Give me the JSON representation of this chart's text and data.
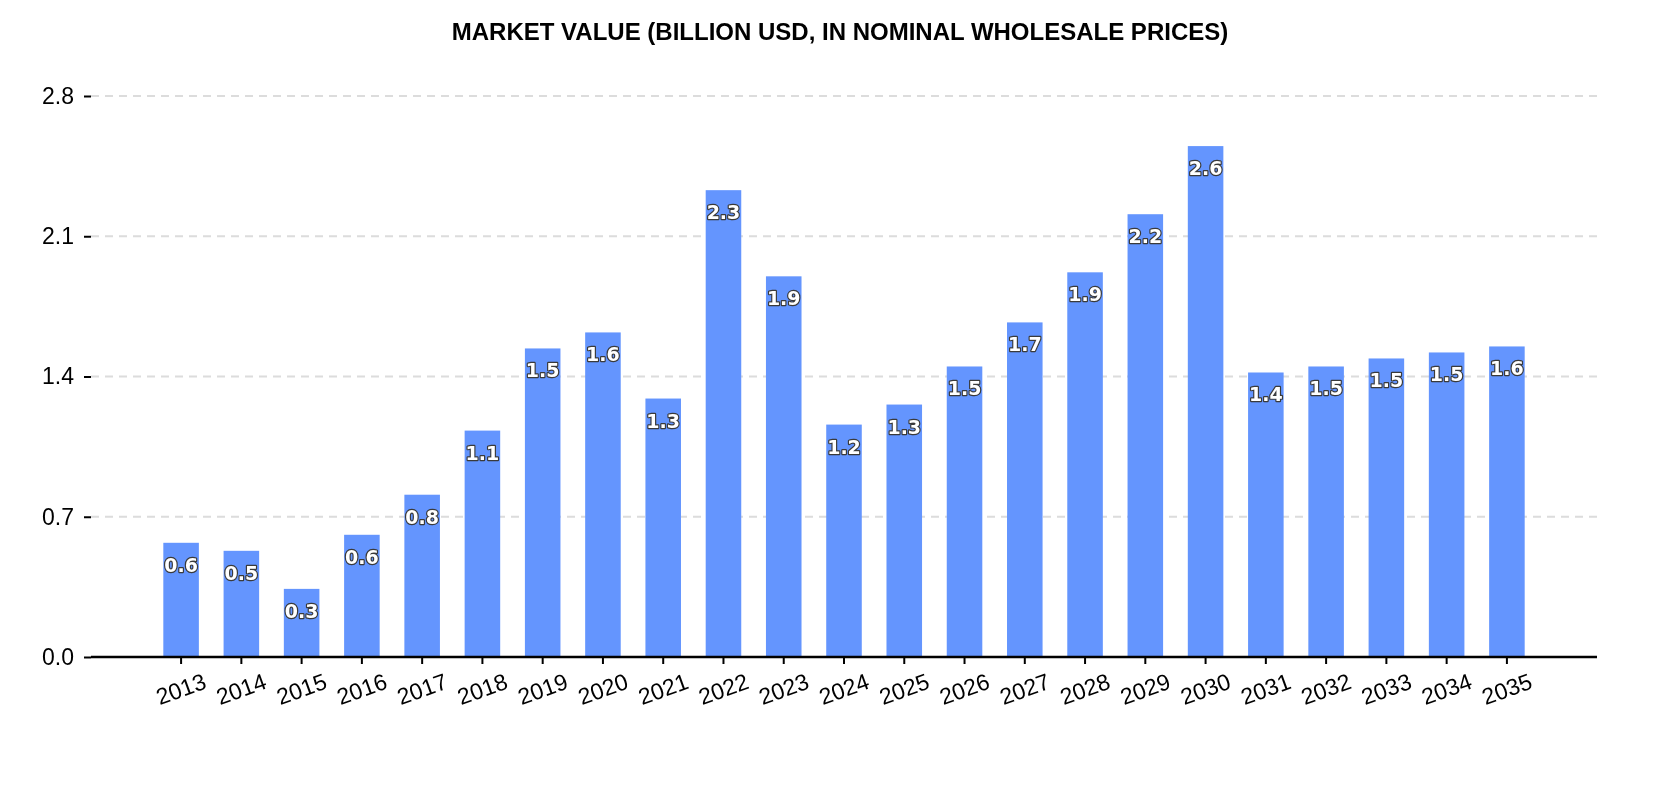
{
  "chart_data": {
    "type": "bar",
    "title": "MARKET VALUE (BILLION USD, IN NOMINAL WHOLESALE PRICES)",
    "categories": [
      "2013",
      "2014",
      "2015",
      "2016",
      "2017",
      "2018",
      "2019",
      "2020",
      "2021",
      "2022",
      "2023",
      "2024",
      "2025",
      "2026",
      "2027",
      "2028",
      "2029",
      "2030",
      "2031",
      "2032",
      "2033",
      "2034",
      "2035"
    ],
    "values": [
      0.57,
      0.53,
      0.34,
      0.61,
      0.81,
      1.13,
      1.54,
      1.62,
      1.29,
      2.33,
      1.9,
      1.16,
      1.26,
      1.45,
      1.67,
      1.92,
      2.21,
      2.55,
      1.42,
      1.45,
      1.49,
      1.52,
      1.55
    ],
    "value_labels": [
      "0.6",
      "0.5",
      "0.3",
      "0.6",
      "0.8",
      "1.1",
      "1.5",
      "1.6",
      "1.3",
      "2.3",
      "1.9",
      "1.2",
      "1.3",
      "1.5",
      "1.7",
      "1.9",
      "2.2",
      "2.6",
      "1.4",
      "1.5",
      "1.5",
      "1.5",
      "1.6"
    ],
    "color": "#6495fe",
    "ylim": [
      0,
      2.8
    ],
    "yticks": [
      {
        "value": 0,
        "label": "0.0"
      },
      0.7,
      1.4,
      2.1,
      2.8
    ],
    "grid": "y"
  }
}
